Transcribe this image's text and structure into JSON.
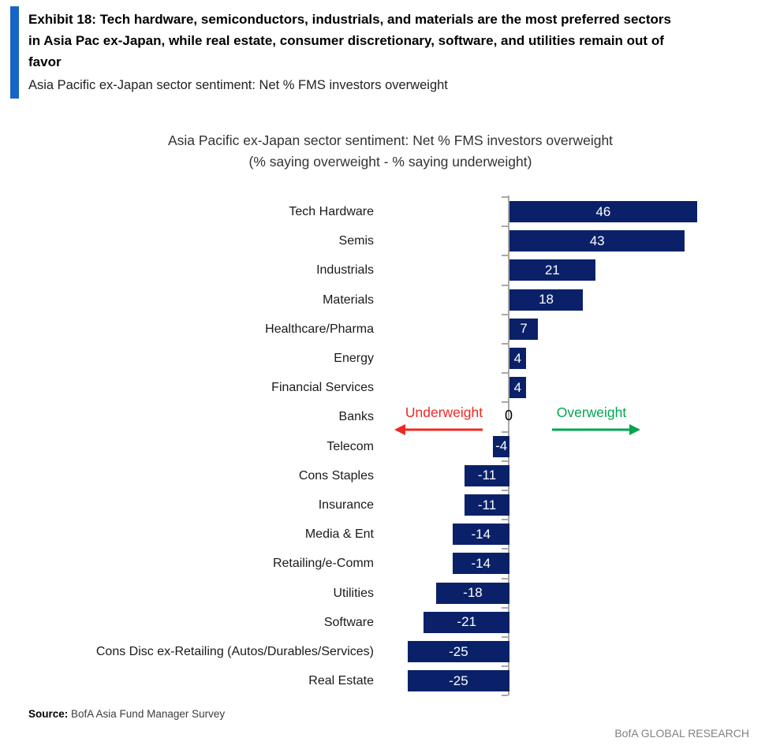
{
  "header": {
    "accent_color": "#1764c8",
    "title_lines": [
      "Exhibit 18: Tech hardware, semiconductors, industrials, and materials are the most preferred sectors",
      "in Asia Pac ex-Japan, while real estate, consumer discretionary, software, and utilities remain out of",
      "favor"
    ],
    "subtitle": "Asia Pacific ex-Japan sector sentiment: Net % FMS investors overweight"
  },
  "chart_data": {
    "type": "bar",
    "orientation": "horizontal",
    "title_line1": "Asia Pacific ex-Japan sector sentiment: Net % FMS investors overweight",
    "title_line2": "(% saying overweight - % saying underweight)",
    "categories": [
      "Tech Hardware",
      "Semis",
      "Industrials",
      "Materials",
      "Healthcare/Pharma",
      "Energy",
      "Financial Services",
      "Banks",
      "Telecom",
      "Cons Staples",
      "Insurance",
      "Media & Ent",
      "Retailing/e-Comm",
      "Utilities",
      "Software",
      "Cons Disc ex-Retailing (Autos/Durables/Services)",
      "Real Estate"
    ],
    "values": [
      46,
      43,
      21,
      18,
      7,
      4,
      4,
      0,
      -4,
      -11,
      -11,
      -14,
      -14,
      -18,
      -21,
      -25,
      -25
    ],
    "xlim": [
      -30,
      50
    ],
    "grid": false,
    "bar_color": "#0a2169",
    "axis_color": "#a8a8a8",
    "value_label_color": "#ffffff",
    "annotations": {
      "underweight_label": "Underweight",
      "underweight_color": "#f02823",
      "overweight_label": "Overweight",
      "overweight_color": "#00a650",
      "zero_label": "0"
    }
  },
  "footer": {
    "source_label": "Source:",
    "source_text": " BofA Asia Fund Manager Survey",
    "brand": "BofA GLOBAL RESEARCH"
  }
}
